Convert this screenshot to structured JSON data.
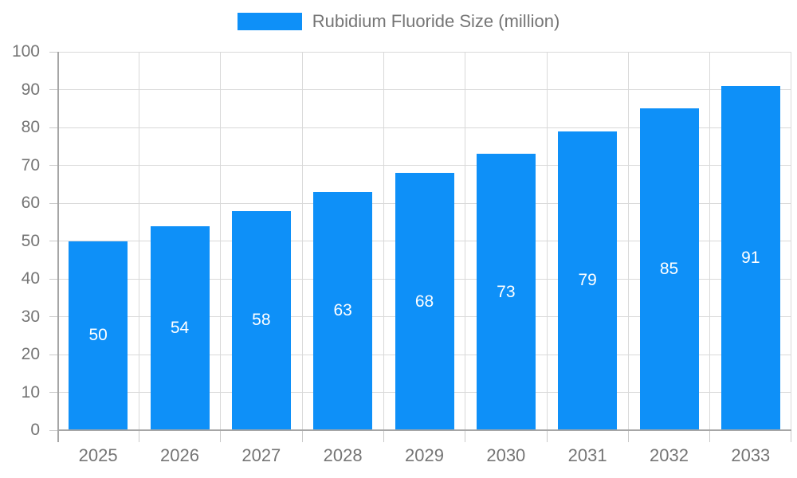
{
  "legend": {
    "label": "Rubidium Fluoride Size (million)"
  },
  "chart_data": {
    "type": "bar",
    "title": "",
    "xlabel": "",
    "ylabel": "",
    "categories": [
      "2025",
      "2026",
      "2027",
      "2028",
      "2029",
      "2030",
      "2031",
      "2032",
      "2033"
    ],
    "values": [
      50,
      54,
      58,
      63,
      68,
      73,
      79,
      85,
      91
    ],
    "series_name": "Rubidium Fluoride Size (million)",
    "ylim": [
      0,
      100
    ],
    "ytick_step": 10,
    "ytick_labels": [
      "0",
      "10",
      "20",
      "30",
      "40",
      "50",
      "60",
      "70",
      "80",
      "90",
      "100"
    ],
    "bar_labels_visible": true,
    "grid": "both",
    "legend_position": "top-center",
    "colors": {
      "bar": "#0e90f8",
      "bar_label": "#ffffff",
      "axis_line": "#a6a6a6",
      "gridline": "#d9d9d9",
      "tick": "#c9c9c9",
      "text": "#757575",
      "background": "#ffffff"
    }
  }
}
